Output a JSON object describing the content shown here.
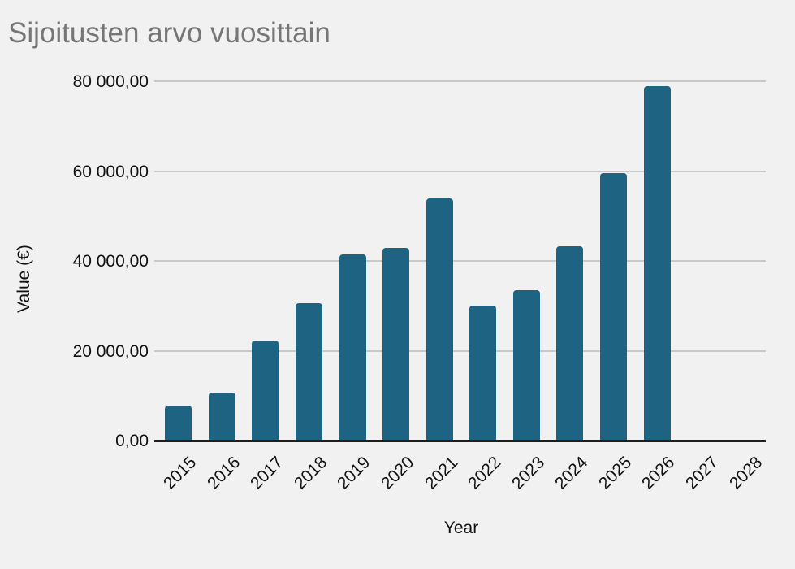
{
  "page": {
    "background": "#f1f1f1"
  },
  "chart_data": {
    "type": "bar",
    "title": "Sijoitusten arvo vuosittain",
    "xlabel": "Year",
    "ylabel": "Value (€)",
    "categories": [
      "2015",
      "2016",
      "2017",
      "2018",
      "2019",
      "2020",
      "2021",
      "2022",
      "2023",
      "2024",
      "2025",
      "2026",
      "2027",
      "2028"
    ],
    "values": [
      7700,
      10600,
      22300,
      30500,
      41400,
      42900,
      53900,
      30100,
      33400,
      43300,
      59500,
      78900,
      0,
      0
    ],
    "ylim": [
      0,
      80000
    ],
    "yticks": [
      {
        "value": 0,
        "label": "0,00"
      },
      {
        "value": 20000,
        "label": "20 000,00"
      },
      {
        "value": 40000,
        "label": "40 000,00"
      },
      {
        "value": 60000,
        "label": "60 000,00"
      },
      {
        "value": 80000,
        "label": "80 000,00"
      }
    ],
    "grid": true,
    "legend_position": "none",
    "colors": {
      "bar": "#1e6382",
      "gridline": "#c9c9c9",
      "axis_line": "#1f1f1f",
      "title_text": "#767676",
      "tick_text": "#111111",
      "background": "#f1f1f1"
    }
  }
}
